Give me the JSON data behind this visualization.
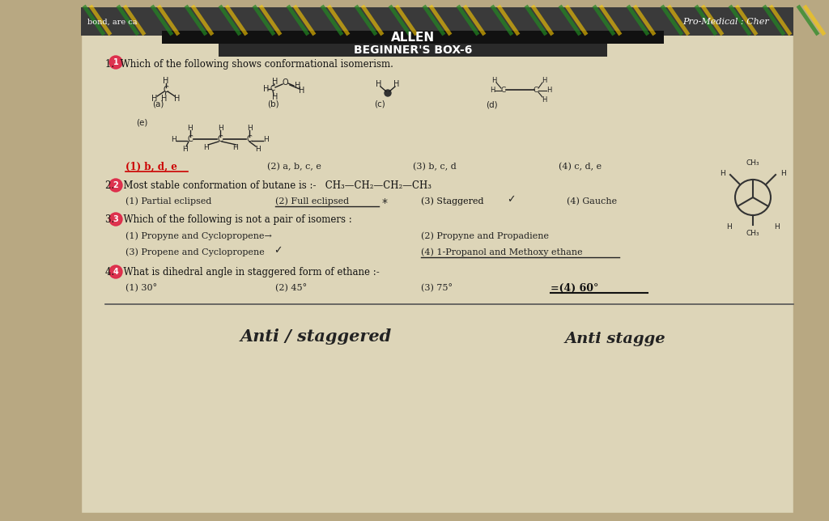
{
  "bg_color": "#b8a882",
  "page_bg": "#ddd5b8",
  "title_text": "ALLEN",
  "box_title": "BEGINNER'S BOX-6",
  "header_right": "Pro-Medical : Cher",
  "header_left": "bond, are ca",
  "q1_text": "1.  Which of the following shows conformational isomerism.",
  "q1_answers": [
    "(1) b, d, e",
    "(2) a, b, c, e",
    "(3) b, c, d",
    "(4) c, d, e"
  ],
  "q2_text": "2.   Most stable conformation of butane is :-   CH₃—CH₂—CH₂—CH₃",
  "q2_options": [
    "(1) Partial eclipsed",
    "(2) Full eclipsed",
    "(3) Staggered",
    "(4) Gauche"
  ],
  "q3_text": "3.   Which of the following is not a pair of isomers :",
  "q3_options": [
    "(1) Propyne and Cyclopropene→",
    "(2) Propyne and Propadiene",
    "(3) Propene and Cyclopropene",
    "(4) 1-Propanol and Methoxy ethane"
  ],
  "q4_text": "4.   What is dihedral angle in staggered form of ethane :-",
  "q4_options": [
    "(1) 30°",
    "(2) 45°",
    "(3) 75°",
    "=(4) 60°"
  ],
  "handwritten1": "Anti / staggered",
  "handwritten2": "Anti stagge"
}
